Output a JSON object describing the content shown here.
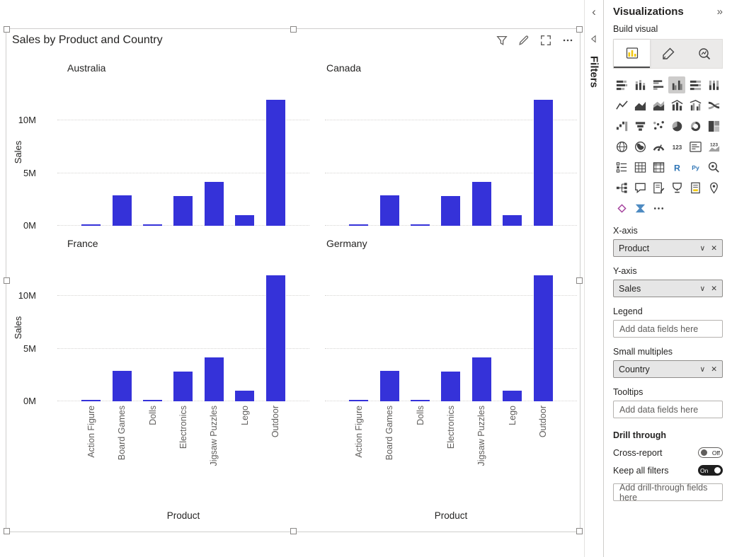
{
  "chart_data": {
    "type": "bar",
    "title": "Sales by Product and Country",
    "layout": "2x2 small multiples, shared axes, dotted horizontal gridlines",
    "categories": [
      "Action Figure",
      "Board Games",
      "Dolls",
      "Electronics",
      "Jigsaw Puzzles",
      "Lego",
      "Outdoor"
    ],
    "series": [
      {
        "name": "Australia",
        "values": [
          0.1,
          2.9,
          0.1,
          2.8,
          4.2,
          1.0,
          12.0
        ]
      },
      {
        "name": "Canada",
        "values": [
          0.1,
          2.9,
          0.1,
          2.8,
          4.2,
          1.0,
          12.0
        ]
      },
      {
        "name": "France",
        "values": [
          0.1,
          2.9,
          0.1,
          2.8,
          4.2,
          1.0,
          12.0
        ]
      },
      {
        "name": "Germany",
        "values": [
          0.1,
          2.9,
          0.1,
          2.8,
          4.2,
          1.0,
          12.0
        ]
      }
    ],
    "values_unit": "millions",
    "xlabel": "Product",
    "ylabel": "Sales",
    "ymax": 14,
    "yticks": [
      {
        "value": 0,
        "label": "0M"
      },
      {
        "value": 5,
        "label": "5M"
      },
      {
        "value": 10,
        "label": "10M"
      }
    ],
    "bar_color": "#3532D9"
  },
  "icons": {
    "collapse_right": "»",
    "chevron_left": "‹",
    "dropdown": "∨",
    "remove": "✕"
  },
  "visual_toolbar": [
    {
      "name": "filter-icon",
      "glyph": "filter"
    },
    {
      "name": "edit-icon",
      "glyph": "pencil"
    },
    {
      "name": "focus-mode-icon",
      "glyph": "focus"
    },
    {
      "name": "more-options-icon",
      "glyph": "more"
    }
  ],
  "filters_pane": {
    "title": "Filters"
  },
  "viz_pane": {
    "title": "Visualizations",
    "build_visual": "Build visual",
    "tabs": [
      {
        "name": "tab-build-visual",
        "glyph": "build",
        "selected": true
      },
      {
        "name": "tab-format-visual",
        "glyph": "format",
        "selected": false
      },
      {
        "name": "tab-analytics",
        "glyph": "analytics",
        "selected": false
      }
    ],
    "gallery": [
      {
        "name": "stacked-bar-chart",
        "glyph": "sbar"
      },
      {
        "name": "stacked-column-chart",
        "glyph": "scol"
      },
      {
        "name": "clustered-bar-chart",
        "glyph": "cbar"
      },
      {
        "name": "clustered-column-chart",
        "glyph": "ccol",
        "selected": true
      },
      {
        "name": "100-stacked-bar-chart",
        "glyph": "pbar"
      },
      {
        "name": "100-stacked-column-chart",
        "glyph": "pcol"
      },
      {
        "name": "line-chart",
        "glyph": "line"
      },
      {
        "name": "area-chart",
        "glyph": "area"
      },
      {
        "name": "stacked-area-chart",
        "glyph": "sarea"
      },
      {
        "name": "line-and-stacked-column-chart",
        "glyph": "combo1"
      },
      {
        "name": "line-and-clustered-column-chart",
        "glyph": "combo2"
      },
      {
        "name": "ribbon-chart",
        "glyph": "ribbon"
      },
      {
        "name": "waterfall-chart",
        "glyph": "waterfall"
      },
      {
        "name": "funnel-chart",
        "glyph": "funnel"
      },
      {
        "name": "scatter-chart",
        "glyph": "scatter"
      },
      {
        "name": "pie-chart",
        "glyph": "pie"
      },
      {
        "name": "donut-chart",
        "glyph": "donut"
      },
      {
        "name": "treemap",
        "glyph": "treemap"
      },
      {
        "name": "map",
        "glyph": "globe"
      },
      {
        "name": "filled-map",
        "glyph": "fmap"
      },
      {
        "name": "gauge",
        "glyph": "gauge"
      },
      {
        "name": "card",
        "glyph": "card123"
      },
      {
        "name": "multi-row-card",
        "glyph": "mcard"
      },
      {
        "name": "kpi",
        "glyph": "kpi"
      },
      {
        "name": "slicer",
        "glyph": "slicer"
      },
      {
        "name": "table",
        "glyph": "table"
      },
      {
        "name": "matrix",
        "glyph": "matrix"
      },
      {
        "name": "r-script-visual",
        "glyph": "R"
      },
      {
        "name": "python-visual",
        "glyph": "Py"
      },
      {
        "name": "key-influencers",
        "glyph": "keyinf"
      },
      {
        "name": "decomposition-tree",
        "glyph": "dtree"
      },
      {
        "name": "qa-visual",
        "glyph": "qa"
      },
      {
        "name": "smart-narrative",
        "glyph": "narrative"
      },
      {
        "name": "metrics",
        "glyph": "metrics"
      },
      {
        "name": "paginated-report",
        "glyph": "report"
      },
      {
        "name": "arcgis-map",
        "glyph": "pin"
      },
      {
        "name": "power-apps",
        "glyph": "papps"
      },
      {
        "name": "power-automate",
        "glyph": "pauto"
      },
      {
        "name": "get-more-visuals",
        "glyph": "more"
      }
    ],
    "wells": [
      {
        "label": "X-axis",
        "kind": "field",
        "value": "Product"
      },
      {
        "label": "Y-axis",
        "kind": "field",
        "value": "Sales"
      },
      {
        "label": "Legend",
        "kind": "empty",
        "placeholder": "Add data fields here"
      },
      {
        "label": "Small multiples",
        "kind": "field",
        "value": "Country"
      },
      {
        "label": "Tooltips",
        "kind": "empty",
        "placeholder": "Add data fields here"
      }
    ],
    "drill_through": {
      "title": "Drill through",
      "toggles": [
        {
          "label": "Cross-report",
          "state": "Off"
        },
        {
          "label": "Keep all filters",
          "state": "On"
        }
      ],
      "placeholder": "Add drill-through fields here"
    }
  }
}
